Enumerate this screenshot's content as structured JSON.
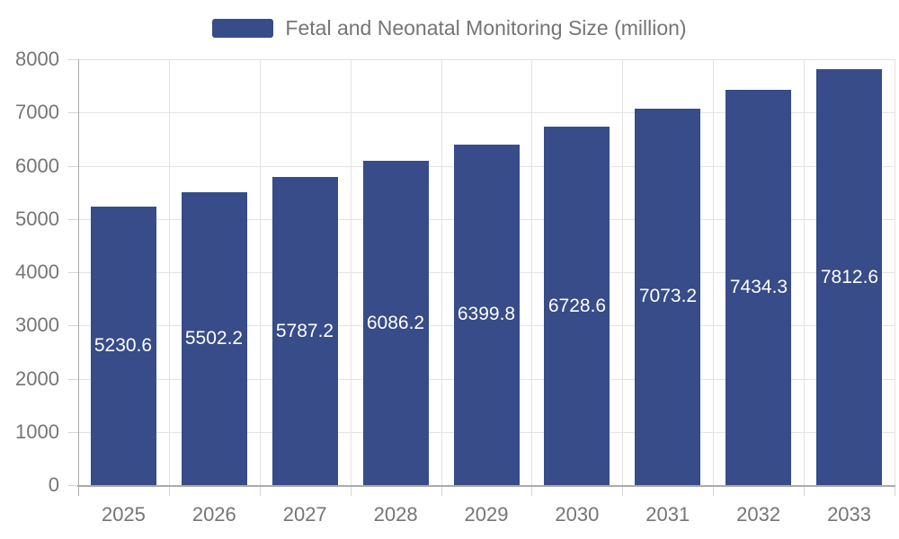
{
  "chart_data": {
    "type": "bar",
    "categories": [
      "2025",
      "2026",
      "2027",
      "2028",
      "2029",
      "2030",
      "2031",
      "2032",
      "2033"
    ],
    "series": [
      {
        "name": "Fetal and Neonatal Monitoring Size (million)",
        "values": [
          5230.6,
          5502.2,
          5787.2,
          6086.2,
          6399.8,
          6728.6,
          7073.2,
          7434.3,
          7812.6
        ]
      }
    ],
    "value_labels": [
      "5230.6",
      "5502.2",
      "5787.2",
      "6086.2",
      "6399.8",
      "6728.6",
      "7073.2",
      "7434.3",
      "7812.6"
    ],
    "value_label_position": "inside-center",
    "legend": {
      "labels": [
        "Fetal and Neonatal Monitoring Size (million)"
      ],
      "position": "top"
    },
    "xlabel": "",
    "ylabel": "",
    "ylim": [
      0,
      8000
    ],
    "ytick_interval": 1000,
    "yticks": [
      "0",
      "1000",
      "2000",
      "3000",
      "4000",
      "5000",
      "6000",
      "7000",
      "8000"
    ],
    "grid": true
  },
  "colors": {
    "bar": "#374c88",
    "bar_label": "#ffffff",
    "axis_text": "#757575",
    "grid_line": "#e3e3e3",
    "axis_line": "#ababab",
    "tick_line": "#d4d4d4",
    "plot_border": "#e2e2e2"
  }
}
